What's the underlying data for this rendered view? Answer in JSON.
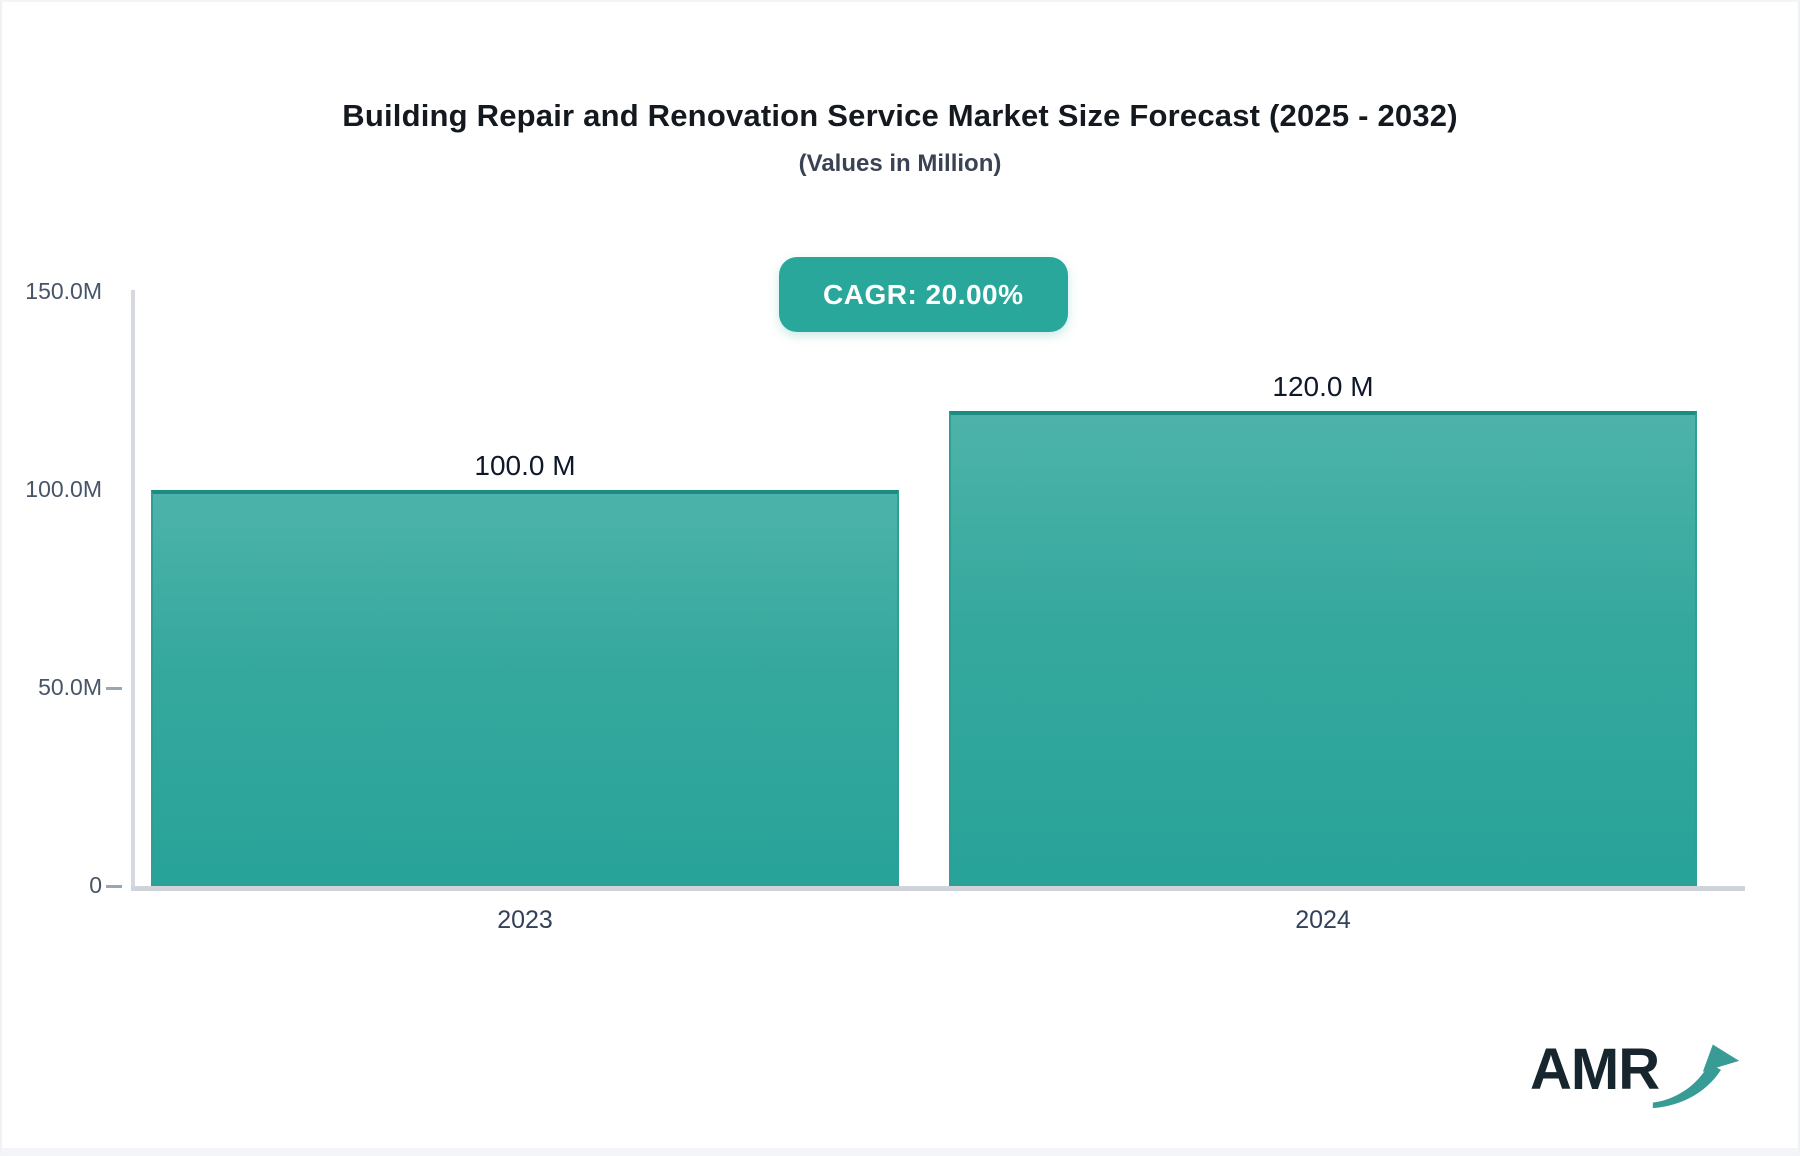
{
  "page": {
    "logo_text": "AMR"
  },
  "colors": {
    "accent_teal": "#2aa79b",
    "bar_gradient_top": "#4db3aa",
    "bar_gradient_bottom": "#28a399",
    "bar_top_border": "#1a8c82",
    "axis_line": "#d5d8de",
    "logo_dark": "#17262e",
    "logo_arrow_teal": "#399b95"
  },
  "chart_data": {
    "type": "bar",
    "title": "Building Repair and Renovation Service Market Size Forecast (2025 - 2032)",
    "subtitle": "(Values in Million)",
    "cagr_label": "CAGR: 20.00%",
    "cagr_pct": 20.0,
    "unit": "Million",
    "categories": [
      "2023",
      "2024"
    ],
    "values": [
      100.0,
      120.0
    ],
    "value_labels": [
      "100.0 M",
      "120.0 M"
    ],
    "ylim": [
      0,
      150
    ],
    "y_ticks": [
      {
        "label": "150.0M",
        "value": 150,
        "dash": false
      },
      {
        "label": "100.0M",
        "value": 100,
        "dash": false
      },
      {
        "label": "50.0M",
        "value": 50,
        "dash": true
      },
      {
        "label": "0",
        "value": 0,
        "dash": true
      }
    ],
    "grid": false,
    "legend": "none"
  }
}
